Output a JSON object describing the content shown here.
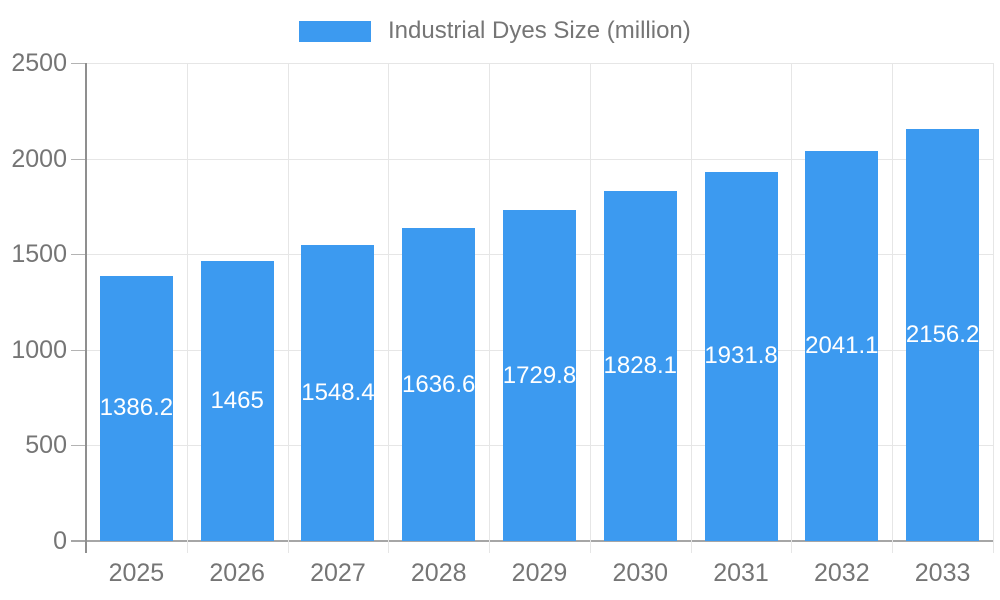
{
  "chart_data": {
    "type": "bar",
    "title": "Industrial Dyes Size (million)",
    "legend": {
      "label": "Industrial Dyes Size (million)",
      "position": "top"
    },
    "categories": [
      "2025",
      "2026",
      "2027",
      "2028",
      "2029",
      "2030",
      "2031",
      "2032",
      "2033"
    ],
    "values": [
      1386.2,
      1465,
      1548.4,
      1636.6,
      1729.8,
      1828.1,
      1931.8,
      2041.1,
      2156.2
    ],
    "value_labels": [
      "1386.2",
      "1465",
      "1548.4",
      "1636.6",
      "1729.8",
      "1828.1",
      "1931.8",
      "2041.1",
      "2156.2"
    ],
    "xlabel": "",
    "ylabel": "",
    "ylim": [
      0,
      2500
    ],
    "y_ticks": [
      "0",
      "500",
      "1000",
      "1500",
      "2000",
      "2500"
    ],
    "grid": true,
    "colors": {
      "bar": "#3C9AF0",
      "gridline": "#e6e6e6",
      "axis_line": "#8f8f8f",
      "baseline": "#a6a6a6",
      "tick_mark": "#b3b3b3",
      "axis_text": "#757575",
      "bar_label_text": "#ffffff",
      "background": "#ffffff"
    }
  }
}
